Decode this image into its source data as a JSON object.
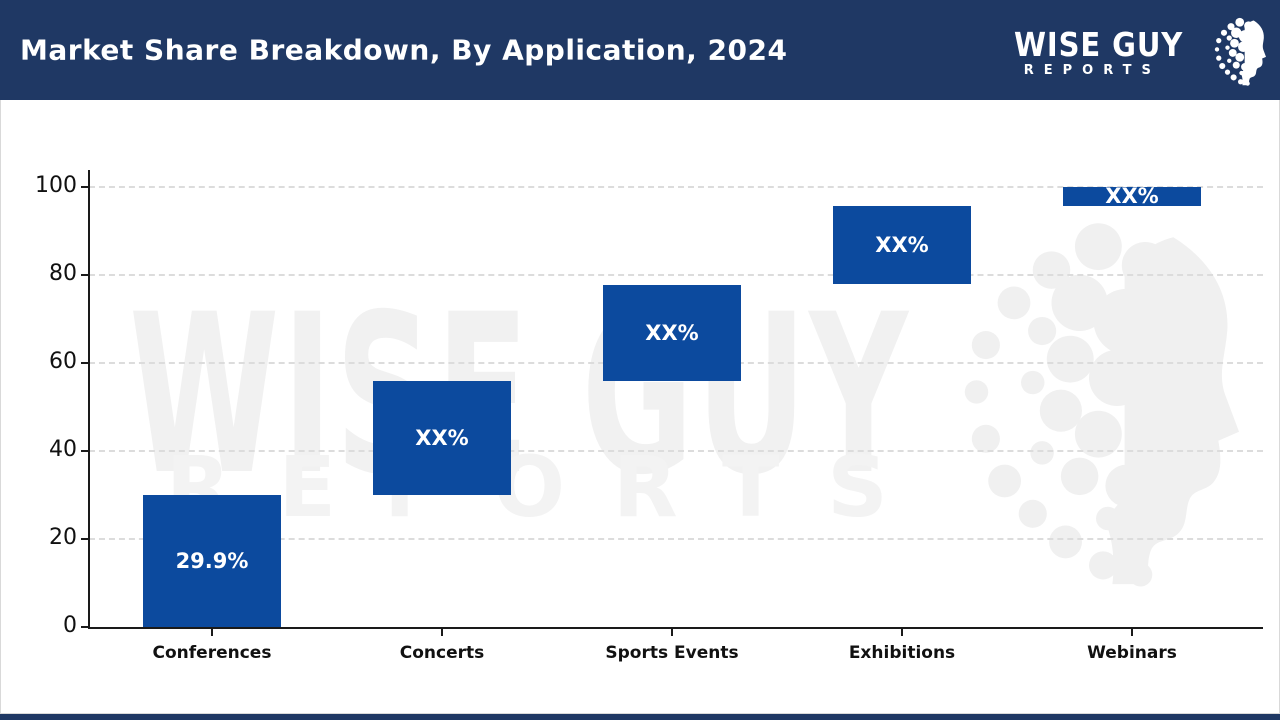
{
  "header": {
    "title": "Market Share Breakdown, By Application, 2024",
    "logo": {
      "line1": "WISE GUY",
      "line2": "REPORTS"
    }
  },
  "watermark": {
    "line1": "WISE GUY",
    "line2": "REPORTS"
  },
  "chart_data": {
    "type": "bar",
    "subtype": "waterfall-floating-bars",
    "title": "Market Share Breakdown, By Application, 2024",
    "categories": [
      "Conferences",
      "Concerts",
      "Sports Events",
      "Exhibitions",
      "Webinars"
    ],
    "segments": [
      {
        "category": "Conferences",
        "start": 0,
        "end": 29.9,
        "label": "29.9%"
      },
      {
        "category": "Concerts",
        "start": 29.9,
        "end": 56,
        "label": "XX%"
      },
      {
        "category": "Sports Events",
        "start": 56,
        "end": 77.8,
        "label": "XX%"
      },
      {
        "category": "Exhibitions",
        "start": 78,
        "end": 95.7,
        "label": "XX%"
      },
      {
        "category": "Webinars",
        "start": 95.7,
        "end": 100,
        "label": "XX%"
      }
    ],
    "xlabel": "",
    "ylabel": "",
    "yticks": [
      0,
      20,
      40,
      60,
      80,
      100
    ],
    "ylim": [
      0,
      104
    ],
    "grid": "horizontal-dashed",
    "legend": "none"
  },
  "colors": {
    "header_bg": "#1f3864",
    "footer_bg": "#1f3864",
    "bar": "#0c4a9e",
    "bar_label": "#ffffff",
    "axis": "#1a1a1a",
    "gridline": "#dcdcdc",
    "watermark": "#f1f1f1"
  }
}
